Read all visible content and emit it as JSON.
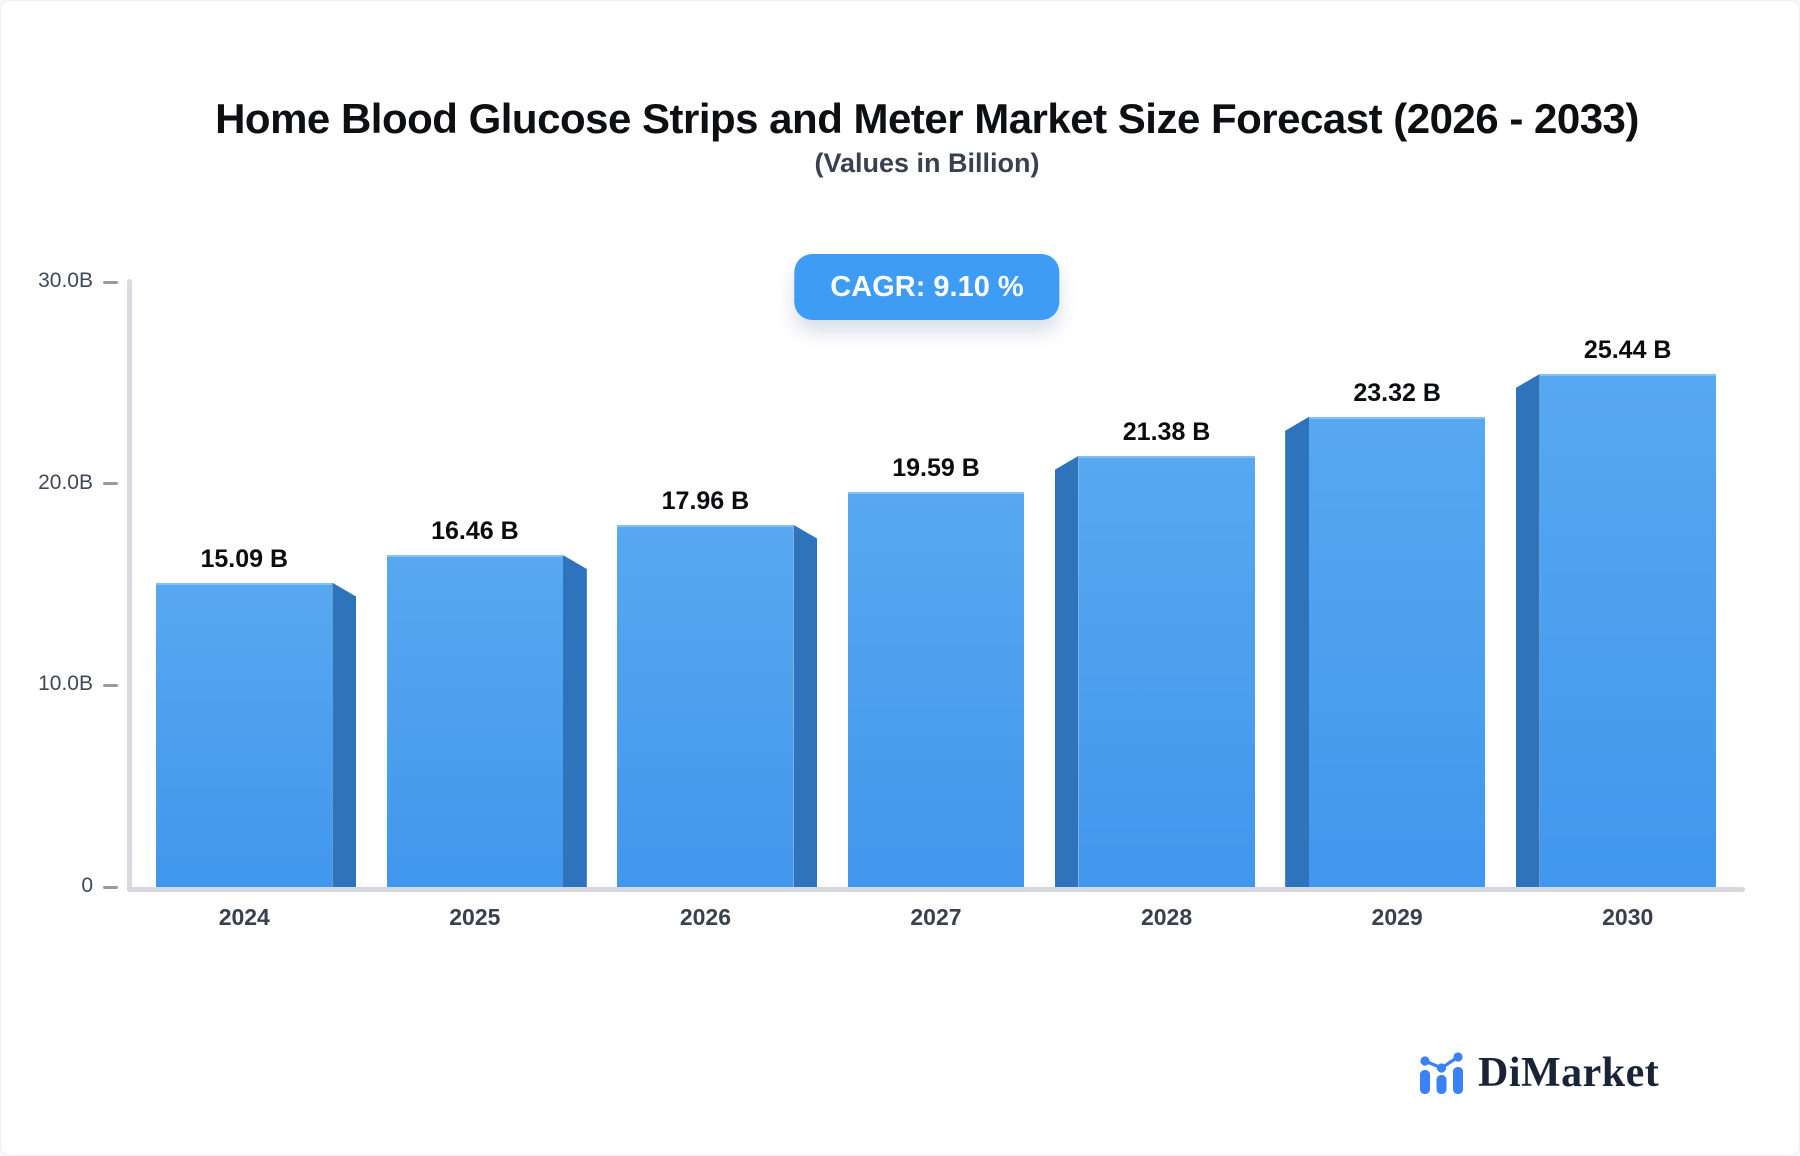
{
  "header": {
    "title": "Home Blood Glucose Strips and Meter Market Size Forecast (2026 - 2033)",
    "subtitle": "(Values in Billion)"
  },
  "cagr_badge": {
    "label": "CAGR: 9.10 %"
  },
  "chart_data": {
    "type": "bar",
    "title": "Home Blood Glucose Strips and Meter Market Size Forecast (2026 - 2033)",
    "subtitle": "(Values in Billion)",
    "categories": [
      "2024",
      "2025",
      "2026",
      "2027",
      "2028",
      "2029",
      "2030"
    ],
    "values": [
      15.09,
      16.46,
      17.96,
      19.59,
      21.38,
      23.32,
      25.44
    ],
    "value_labels": [
      "15.09 B",
      "16.46 B",
      "17.96 B",
      "19.59 B",
      "21.38 B",
      "23.32 B",
      "25.44 B"
    ],
    "cagr_label": "CAGR: 9.10 %",
    "xlabel": "",
    "ylabel": "",
    "ylim": [
      0,
      30
    ],
    "y_ticks": [
      {
        "label": "30.0B",
        "value": 30
      },
      {
        "label": "20.0B",
        "value": 20
      },
      {
        "label": "10.0B",
        "value": 10
      },
      {
        "label": "0",
        "value": 0
      }
    ],
    "grid": false,
    "legend": false,
    "style": "3d-extruded-bars",
    "colors": {
      "bar_face_top": "#57a8f0",
      "bar_face_bottom": "#4197ed",
      "bar_side": "#2e74bc",
      "badge_background": "#3f9cf4",
      "badge_text": "#ffffff",
      "axis_line": "#d7dade",
      "tick_text": "#3e4857",
      "category_text": "#39414f",
      "value_text": "#0a0c10"
    }
  },
  "footer": {
    "brand": "DiMarket",
    "brand_color": "#1b2437",
    "icon": "bar-chart-trendline-icon",
    "icon_color": "#3b82f6"
  }
}
